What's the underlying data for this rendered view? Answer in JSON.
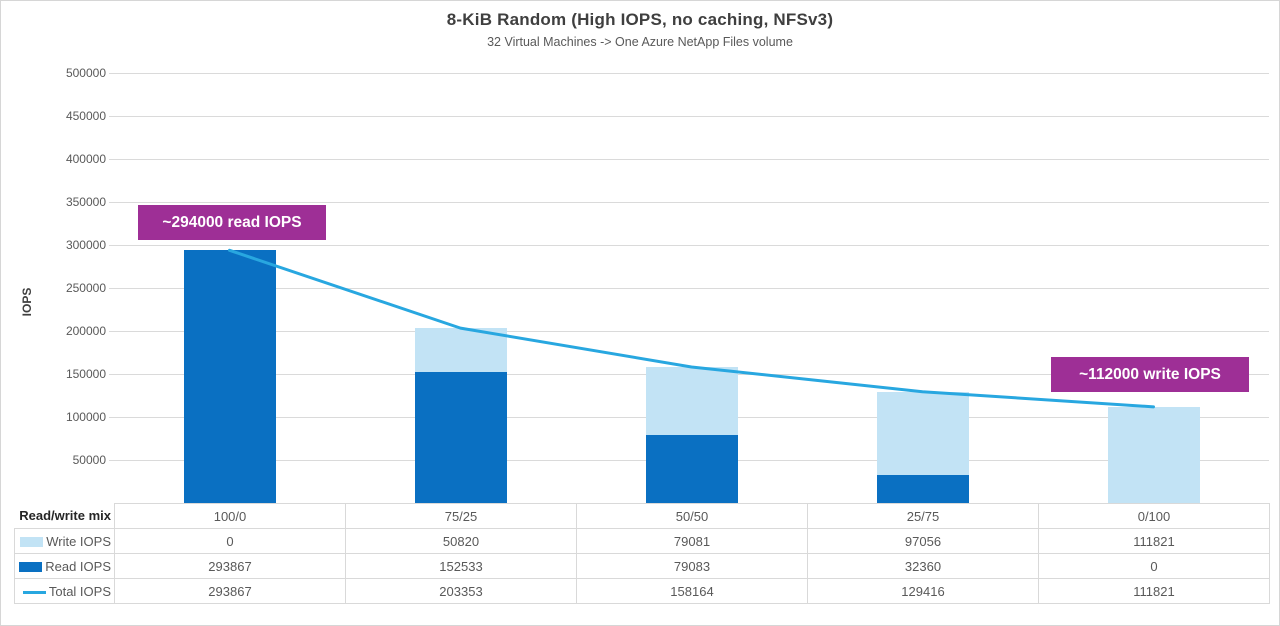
{
  "chart_data": {
    "type": "bar",
    "subtype": "stacked-bars-with-total-line",
    "title": "8-KiB Random (High IOPS, no caching, NFSv3)",
    "subtitle": "32 Virtual Machines -> One Azure NetApp Files volume",
    "xlabel": "Read/write mix",
    "ylabel": "IOPS",
    "ylim": [
      0,
      500000
    ],
    "ytick_step": 50000,
    "yticks": [
      500000,
      450000,
      400000,
      350000,
      300000,
      250000,
      200000,
      150000,
      100000,
      50000
    ],
    "grid": true,
    "legend_position": "row headers of data table below chart",
    "categories": [
      "100/0",
      "75/25",
      "50/50",
      "25/75",
      "0/100"
    ],
    "series": [
      {
        "name": "Write IOPS",
        "type": "bar",
        "stack": "top",
        "color": "#C2E3F5",
        "values": [
          0,
          50820,
          79081,
          97056,
          111821
        ]
      },
      {
        "name": "Read IOPS",
        "type": "bar",
        "stack": "bottom",
        "color": "#0A70C2",
        "values": [
          293867,
          152533,
          79083,
          32360,
          0
        ]
      },
      {
        "name": "Total IOPS",
        "type": "line",
        "color": "#28A7E0",
        "values": [
          293867,
          203353,
          158164,
          129416,
          111821
        ]
      }
    ],
    "annotations": [
      {
        "text": "~294000 read IOPS",
        "bg": "#9E2F96",
        "text_color": "#FFFFFF"
      },
      {
        "text": "~112000 write IOPS",
        "bg": "#9E2F96",
        "text_color": "#FFFFFF"
      }
    ],
    "colors": {
      "read_bar": "#0A70C2",
      "write_bar": "#C2E3F5",
      "total_line": "#28A7E0",
      "annotation_bg": "#9E2F96",
      "gridline": "#DADADA",
      "axis_text": "#595959",
      "title_text": "#3F3F3F",
      "table_border": "#D9D9D9"
    }
  }
}
